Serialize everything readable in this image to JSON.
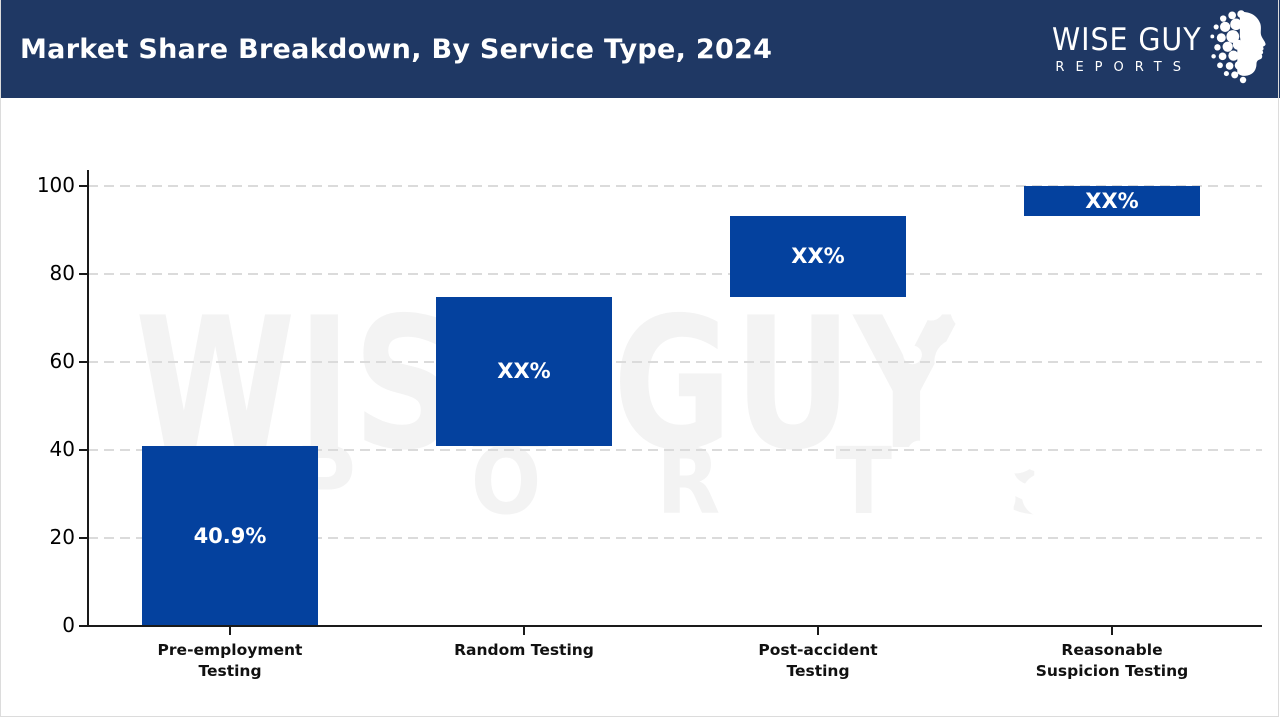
{
  "header": {
    "title": "Market Share Breakdown, By Service Type, 2024",
    "bg_color": "#1f3864",
    "logo": {
      "line1": "WISE GUY",
      "line2": "REPORTS"
    }
  },
  "watermark": {
    "line1": "WISE GUY",
    "line2": "P O R T S"
  },
  "chart_data": {
    "type": "bar",
    "subtype": "waterfall",
    "title": "Market Share Breakdown, By Service Type, 2024",
    "xlabel": "",
    "ylabel": "",
    "ylim": [
      0,
      100
    ],
    "yticks": [
      0,
      20,
      40,
      60,
      80,
      100
    ],
    "grid": "dashed-horizontal",
    "legend": "none",
    "bar_color": "#04419e",
    "label_color": "#ffffff",
    "categories": [
      {
        "name": "Pre-employment Testing",
        "lines": [
          "Pre-employment",
          "Testing"
        ]
      },
      {
        "name": "Random Testing",
        "lines": [
          "Random Testing"
        ]
      },
      {
        "name": "Post-accident Testing",
        "lines": [
          "Post-accident",
          "Testing"
        ]
      },
      {
        "name": "Reasonable Suspicion Testing",
        "lines": [
          "Reasonable",
          "Suspicion Testing"
        ]
      }
    ],
    "segments": [
      {
        "category": "Pre-employment Testing",
        "start": 0,
        "end": 40.9,
        "label": "40.9%",
        "masked": false
      },
      {
        "category": "Random Testing",
        "start": 40.9,
        "end": 74.8,
        "label": "XX%",
        "masked": true
      },
      {
        "category": "Post-accident Testing",
        "start": 74.8,
        "end": 93.2,
        "label": "XX%",
        "masked": true
      },
      {
        "category": "Reasonable Suspicion Testing",
        "start": 93.2,
        "end": 100,
        "label": "XX%",
        "masked": true
      }
    ]
  }
}
